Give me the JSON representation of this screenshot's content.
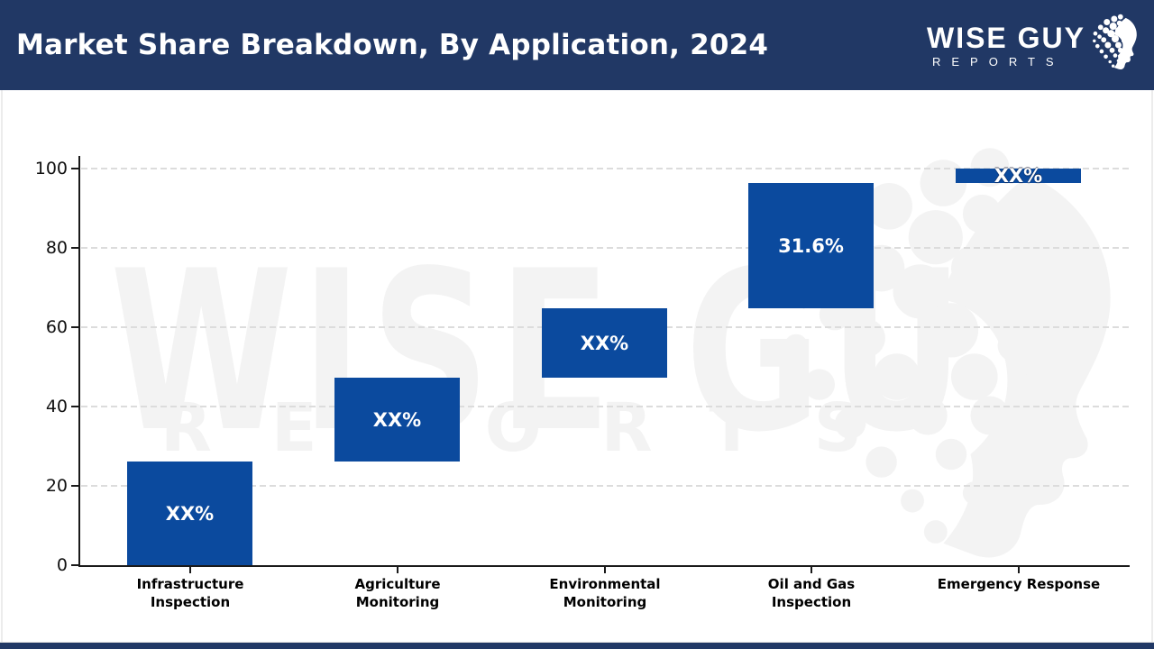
{
  "header": {
    "title": "Market Share Breakdown, By Application, 2024",
    "logo": {
      "line1": "WISE GUY",
      "line2": "REPORTS"
    }
  },
  "watermark": {
    "line1": "WISE GUY",
    "line2": "REPORTS"
  },
  "colors": {
    "header_bg": "#213865",
    "footer_bg": "#213865",
    "bar": "#0b4a9e",
    "gridline": "#dcdcdc",
    "axis_text": "#111111",
    "bar_label_text": "#ffffff",
    "watermark": "#f3f3f3"
  },
  "chart_data": {
    "type": "bar",
    "subtype": "waterfall",
    "title": "Market Share Breakdown, By Application, 2024",
    "categories": [
      "Infrastructure Inspection",
      "Agriculture Monitoring",
      "Environmental Monitoring",
      "Oil and Gas Inspection",
      "Emergency Response"
    ],
    "category_lines": [
      [
        "Infrastructure",
        "Inspection"
      ],
      [
        "Agriculture",
        "Monitoring"
      ],
      [
        "Environmental",
        "Monitoring"
      ],
      [
        "Oil and Gas",
        "Inspection"
      ],
      [
        "Emergency Response"
      ]
    ],
    "segments": [
      {
        "category": "Infrastructure Inspection",
        "start": 0,
        "end": 26.2,
        "label": "XX%"
      },
      {
        "category": "Agriculture Monitoring",
        "start": 26.2,
        "end": 47.3,
        "label": "XX%"
      },
      {
        "category": "Environmental Monitoring",
        "start": 47.3,
        "end": 64.7,
        "label": "XX%"
      },
      {
        "category": "Oil and Gas Inspection",
        "start": 64.7,
        "end": 96.3,
        "label": "31.6%",
        "value": 31.6
      },
      {
        "category": "Emergency Response",
        "start": 96.3,
        "end": 100,
        "label": "XX%"
      }
    ],
    "xlabel": "",
    "ylabel": "",
    "ylim": [
      0,
      100
    ],
    "yticks": [
      0,
      20,
      40,
      60,
      80,
      100
    ],
    "grid": "horizontal-dashed",
    "legend": "none",
    "bar_color": "#0b4a9e"
  }
}
